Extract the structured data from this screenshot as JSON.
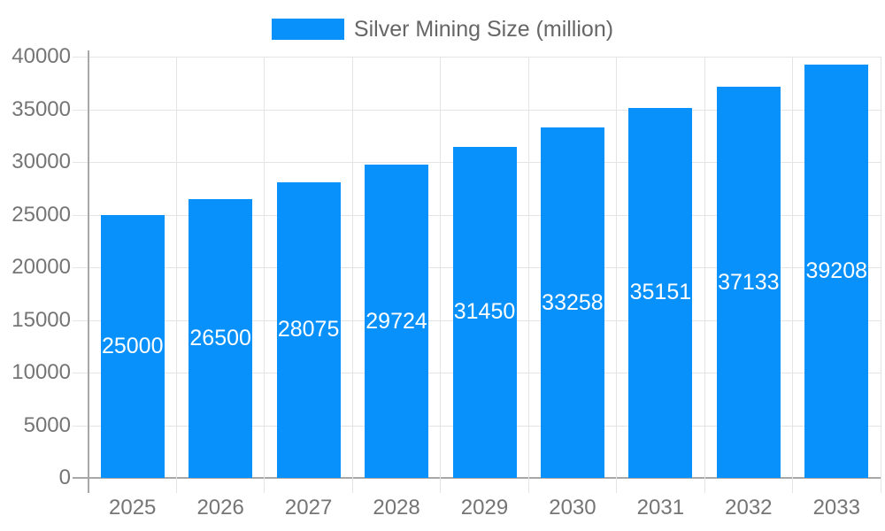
{
  "legend": {
    "label": "Silver Mining Size (million)"
  },
  "chart_data": {
    "type": "bar",
    "title": "",
    "categories": [
      "2025",
      "2026",
      "2027",
      "2028",
      "2029",
      "2030",
      "2031",
      "2032",
      "2033"
    ],
    "series": [
      {
        "name": "Silver Mining Size (million)",
        "values": [
          25000,
          26500,
          28075,
          29724,
          31450,
          33258,
          35151,
          37133,
          39208
        ],
        "color": "#0991fb"
      }
    ],
    "xlabel": "",
    "ylabel": "",
    "ylim": [
      0,
      40000
    ],
    "yticks": [
      0,
      5000,
      10000,
      15000,
      20000,
      25000,
      30000,
      35000,
      40000
    ],
    "grid": true,
    "legend_position": "top-center",
    "value_labels_position": "inside-middle-center",
    "value_labels_color": "#ffffff"
  },
  "colors": {
    "bar": "#0991fb",
    "grid": "#e4e4e4",
    "axis": "#a8a8a8",
    "tick_text": "#757575",
    "legend_text": "#666666",
    "value_label_text": "#ffffff",
    "background": "#ffffff"
  }
}
